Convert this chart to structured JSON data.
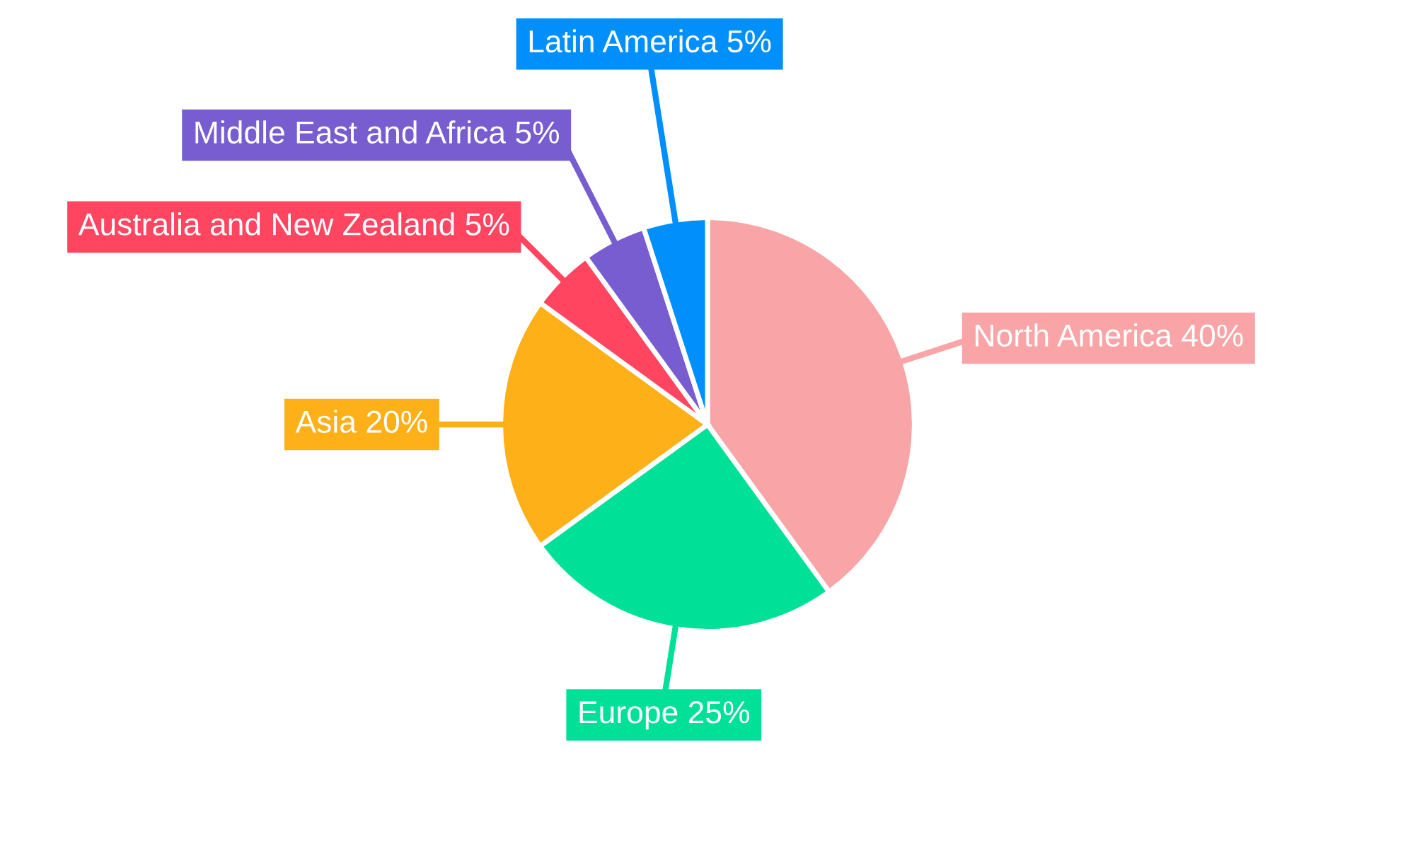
{
  "chart_data": {
    "type": "pie",
    "categories": [
      "North America",
      "Europe",
      "Asia",
      "Australia and New Zealand",
      "Middle East and Africa",
      "Latin America"
    ],
    "values": [
      40,
      25,
      20,
      5,
      5,
      5
    ],
    "value_labels": [
      "40%",
      "25%",
      "20%",
      "5%",
      "5%",
      "5%"
    ],
    "colors": [
      "#f9a4a6",
      "#00e096",
      "#feb019",
      "#ff4560",
      "#775dd0",
      "#008ffb"
    ],
    "legend": false
  }
}
